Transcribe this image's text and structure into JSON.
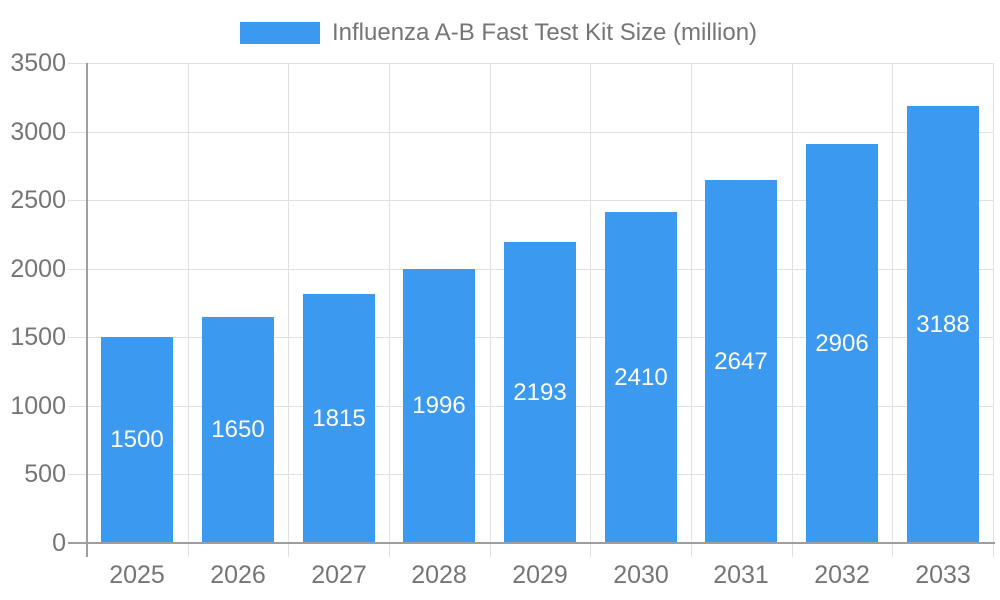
{
  "legend": {
    "label": "Influenza A-B Fast Test Kit Size (million)"
  },
  "colors": {
    "bar": "#3b99f0",
    "axis_line": "#9e9e9e",
    "grid_line": "#e0e0e0",
    "tick_label": "#757575",
    "bar_value_label": "#ffffff",
    "background": "#ffffff"
  },
  "chart_data": {
    "type": "bar",
    "title": "Influenza A-B Fast Test Kit Size (million)",
    "categories": [
      "2025",
      "2026",
      "2027",
      "2028",
      "2029",
      "2030",
      "2031",
      "2032",
      "2033"
    ],
    "values": [
      1500,
      1650,
      1815,
      1996,
      2193,
      2410,
      2647,
      2906,
      3188
    ],
    "xlabel": "",
    "ylabel": "",
    "ylim": [
      0,
      3500
    ],
    "yticks": [
      0,
      500,
      1000,
      1500,
      2000,
      2500,
      3000,
      3500
    ],
    "grid": true,
    "legend_position": "top-center",
    "value_label_position": "inside-center"
  }
}
